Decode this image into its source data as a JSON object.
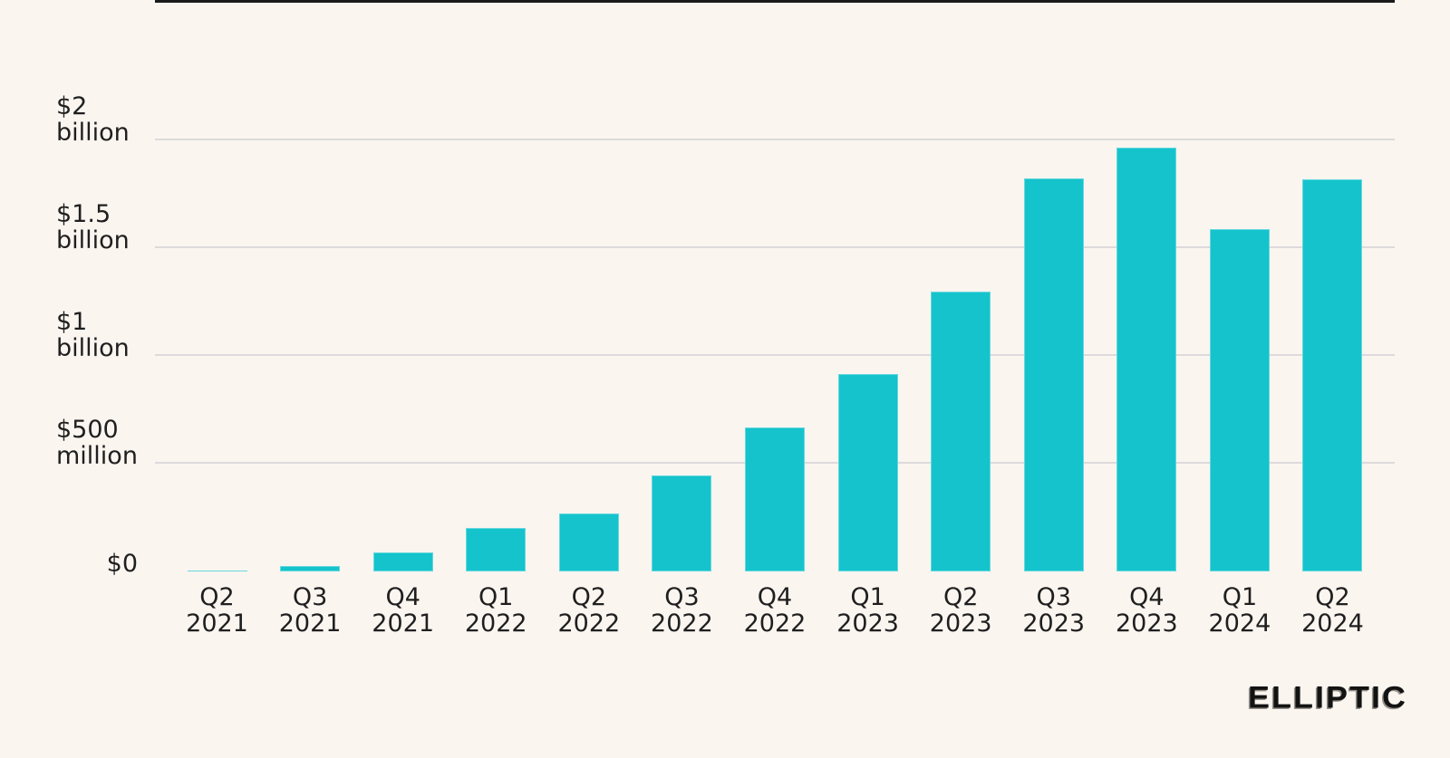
{
  "branding": {
    "logo_text": "ELLIPTIC"
  },
  "colors": {
    "background": "#FBF5F0",
    "bar": "#15C3CC",
    "gridline": "#DCDADB",
    "axis": "#1A1A1A",
    "text": "#1F1F1F"
  },
  "chart_data": {
    "type": "bar",
    "title": "",
    "xlabel": "",
    "ylabel": "",
    "unit": "USD millions",
    "categories": [
      "Q2 2021",
      "Q3 2021",
      "Q4 2021",
      "Q1 2022",
      "Q2 2022",
      "Q3 2022",
      "Q4 2022",
      "Q1 2023",
      "Q2 2023",
      "Q3 2023",
      "Q4 2023",
      "Q1 2024",
      "Q2 2024"
    ],
    "values_usd_millions": [
      3,
      25,
      90,
      200,
      270,
      445,
      670,
      915,
      1300,
      1825,
      1965,
      1590,
      1820
    ],
    "y_ticks": [
      {
        "value_usd_millions": 2000,
        "label_lines": [
          "$2",
          "billion"
        ]
      },
      {
        "value_usd_millions": 1500,
        "label_lines": [
          "$1.5",
          "billion"
        ]
      },
      {
        "value_usd_millions": 1000,
        "label_lines": [
          "$1",
          "billion"
        ]
      },
      {
        "value_usd_millions": 500,
        "label_lines": [
          "$500",
          "million"
        ]
      },
      {
        "value_usd_millions": 0,
        "label_lines": [
          "$0"
        ]
      }
    ],
    "ylim_usd_millions": [
      0,
      2000
    ],
    "grid": true,
    "legend": false
  }
}
